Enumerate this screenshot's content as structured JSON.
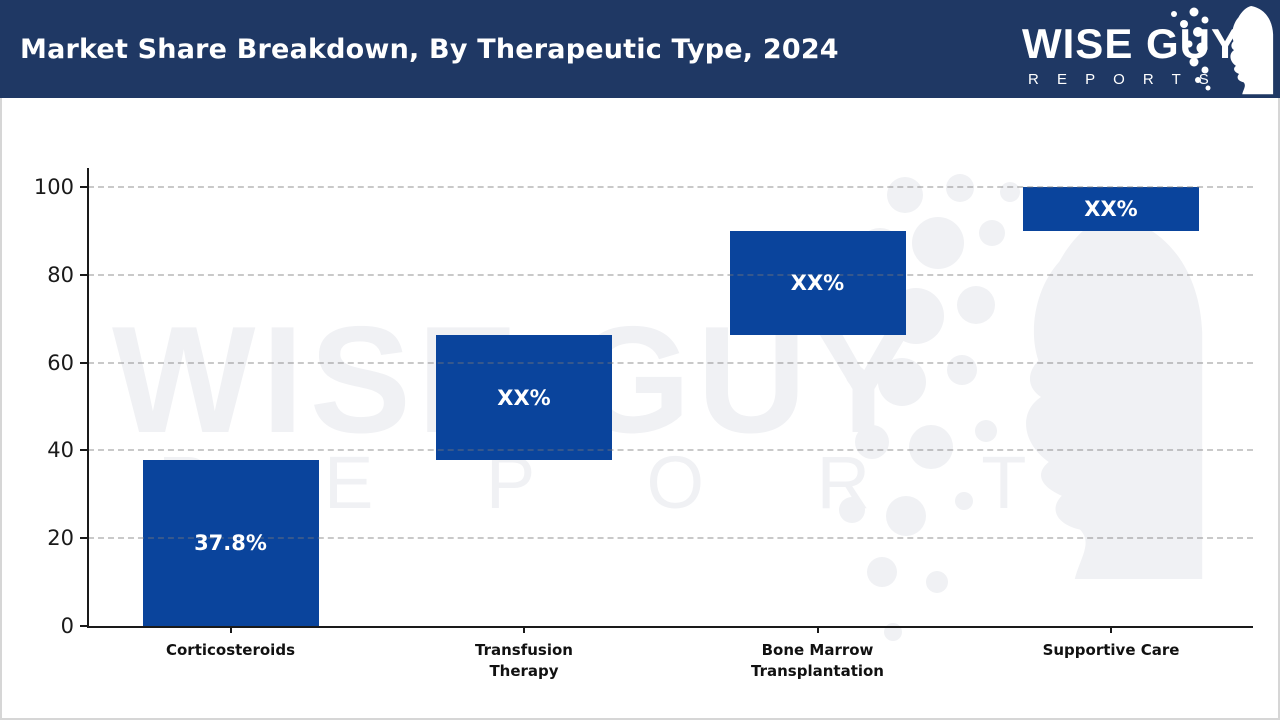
{
  "header": {
    "title": "Market Share Breakdown, By Therapeutic Type, 2024",
    "logo_line1": "WISE GUY",
    "logo_line2": "R E P O R T S"
  },
  "watermark": {
    "line1": "WISE GUY",
    "line2": "R E P O R T S"
  },
  "icons": {
    "logo_face": "dotted-head-profile-icon",
    "watermark_face": "dotted-head-profile-icon"
  },
  "colors": {
    "header_bg": "#1f3864",
    "bar": "#0a449c",
    "bar_label": "#ffffff",
    "axis": "#1a1a1a",
    "grid": "rgba(120,120,120,0.40)",
    "watermark": "#f0f1f4",
    "page_border": "#d6d6d6"
  },
  "chart_data": {
    "type": "bar",
    "variant": "waterfall",
    "title": "Market Share Breakdown, By Therapeutic Type, 2024",
    "categories": [
      [
        "Corticosteroids"
      ],
      [
        "Transfusion",
        "Therapy"
      ],
      [
        "Bone Marrow",
        "Transplantation"
      ],
      [
        "Supportive Care"
      ]
    ],
    "segments": [
      {
        "category": "Corticosteroids",
        "start": 0,
        "end": 37.8,
        "label": "37.8%"
      },
      {
        "category": "Transfusion Therapy",
        "start": 37.8,
        "end": 66.3,
        "label": "XX%"
      },
      {
        "category": "Bone Marrow Transplantation",
        "start": 66.3,
        "end": 90.0,
        "label": "XX%"
      },
      {
        "category": "Supportive Care",
        "start": 90.0,
        "end": 100.0,
        "label": "XX%"
      }
    ],
    "yticks": [
      0,
      20,
      40,
      60,
      80,
      100
    ],
    "ylim": [
      0,
      100
    ],
    "xlabel": "",
    "ylabel": "",
    "grid": "horizontal-dashed",
    "legend": "none"
  }
}
